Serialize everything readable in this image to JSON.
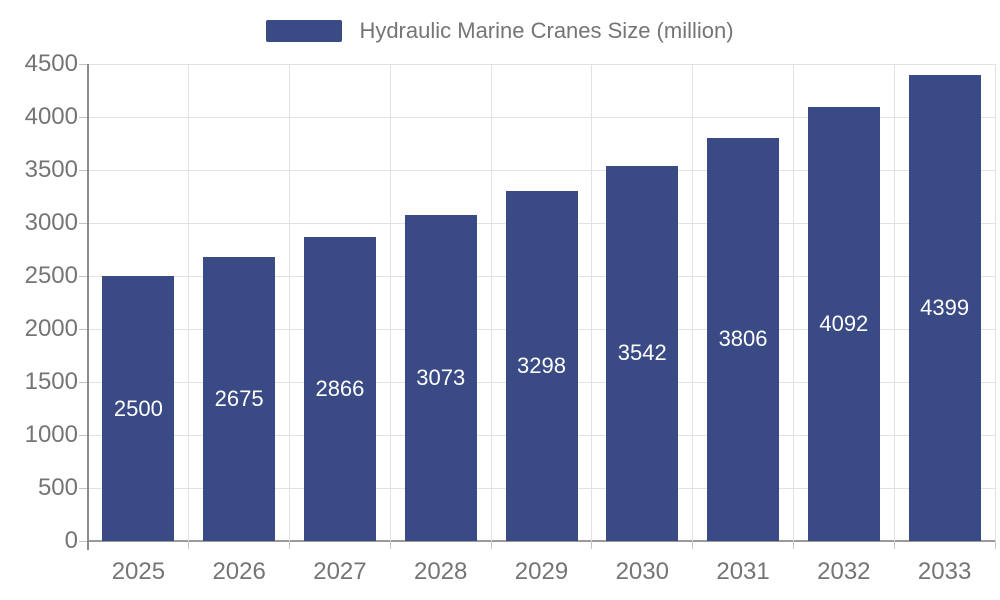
{
  "chart_data": {
    "type": "bar",
    "title": "Hydraulic Marine Cranes Size (million)",
    "categories": [
      "2025",
      "2026",
      "2027",
      "2028",
      "2029",
      "2030",
      "2031",
      "2032",
      "2033"
    ],
    "values": [
      2500,
      2675,
      2866,
      3073,
      3298,
      3542,
      3806,
      4092,
      4399
    ],
    "xlabel": "",
    "ylabel": "",
    "ylim": [
      0,
      4500
    ],
    "ytick_step": 500,
    "grid": true,
    "legend_position": "top-center",
    "bar_labels": "inside-middle-white"
  },
  "colors": {
    "bar": "#394a85",
    "bar_label_text": "#ffffff",
    "legend_text": "#757575",
    "axis_text": "#757575",
    "gridline": "#e2e2e2",
    "zero_line": "#9a9a9a",
    "axis_line": "#8c8c8c",
    "tick": "#c2c2c2",
    "background": "#ffffff"
  }
}
